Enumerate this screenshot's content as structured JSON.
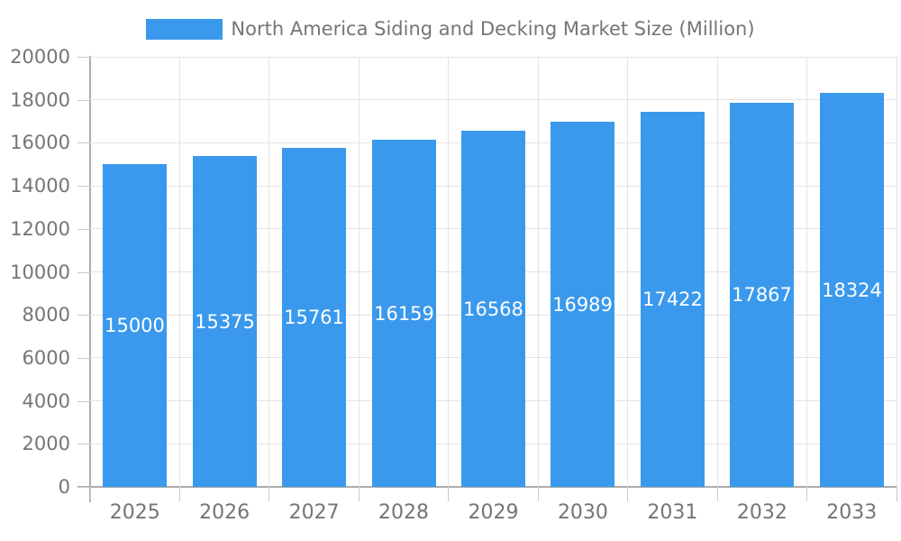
{
  "legend": {
    "label": "North America Siding and Decking Market Size (Million)"
  },
  "colors": {
    "background": "#FFFFFF",
    "bar": "#3A99EC",
    "bar_label": "#FFFFFF",
    "text": "#757575",
    "grid": "#E3E3E3",
    "axis": "#ACACAC",
    "tick": "#C9C9C9"
  },
  "chart_data": {
    "type": "bar",
    "title": "North America Siding and Decking Market Size (Million)",
    "series_name": "North America Siding and Decking Market Size (Million)",
    "categories": [
      "2025",
      "2026",
      "2027",
      "2028",
      "2029",
      "2030",
      "2031",
      "2032",
      "2033"
    ],
    "values": [
      15000,
      15375,
      15761,
      16159,
      16568,
      16989,
      17422,
      17867,
      18324
    ],
    "xlabel": "",
    "ylabel": "",
    "ylim": [
      0,
      20000
    ],
    "ytick_step": 2000,
    "yticks": [
      0,
      2000,
      4000,
      6000,
      8000,
      10000,
      12000,
      14000,
      16000,
      18000,
      20000
    ],
    "grid": true,
    "legend_position": "top",
    "bar_labels": "inside-center"
  }
}
